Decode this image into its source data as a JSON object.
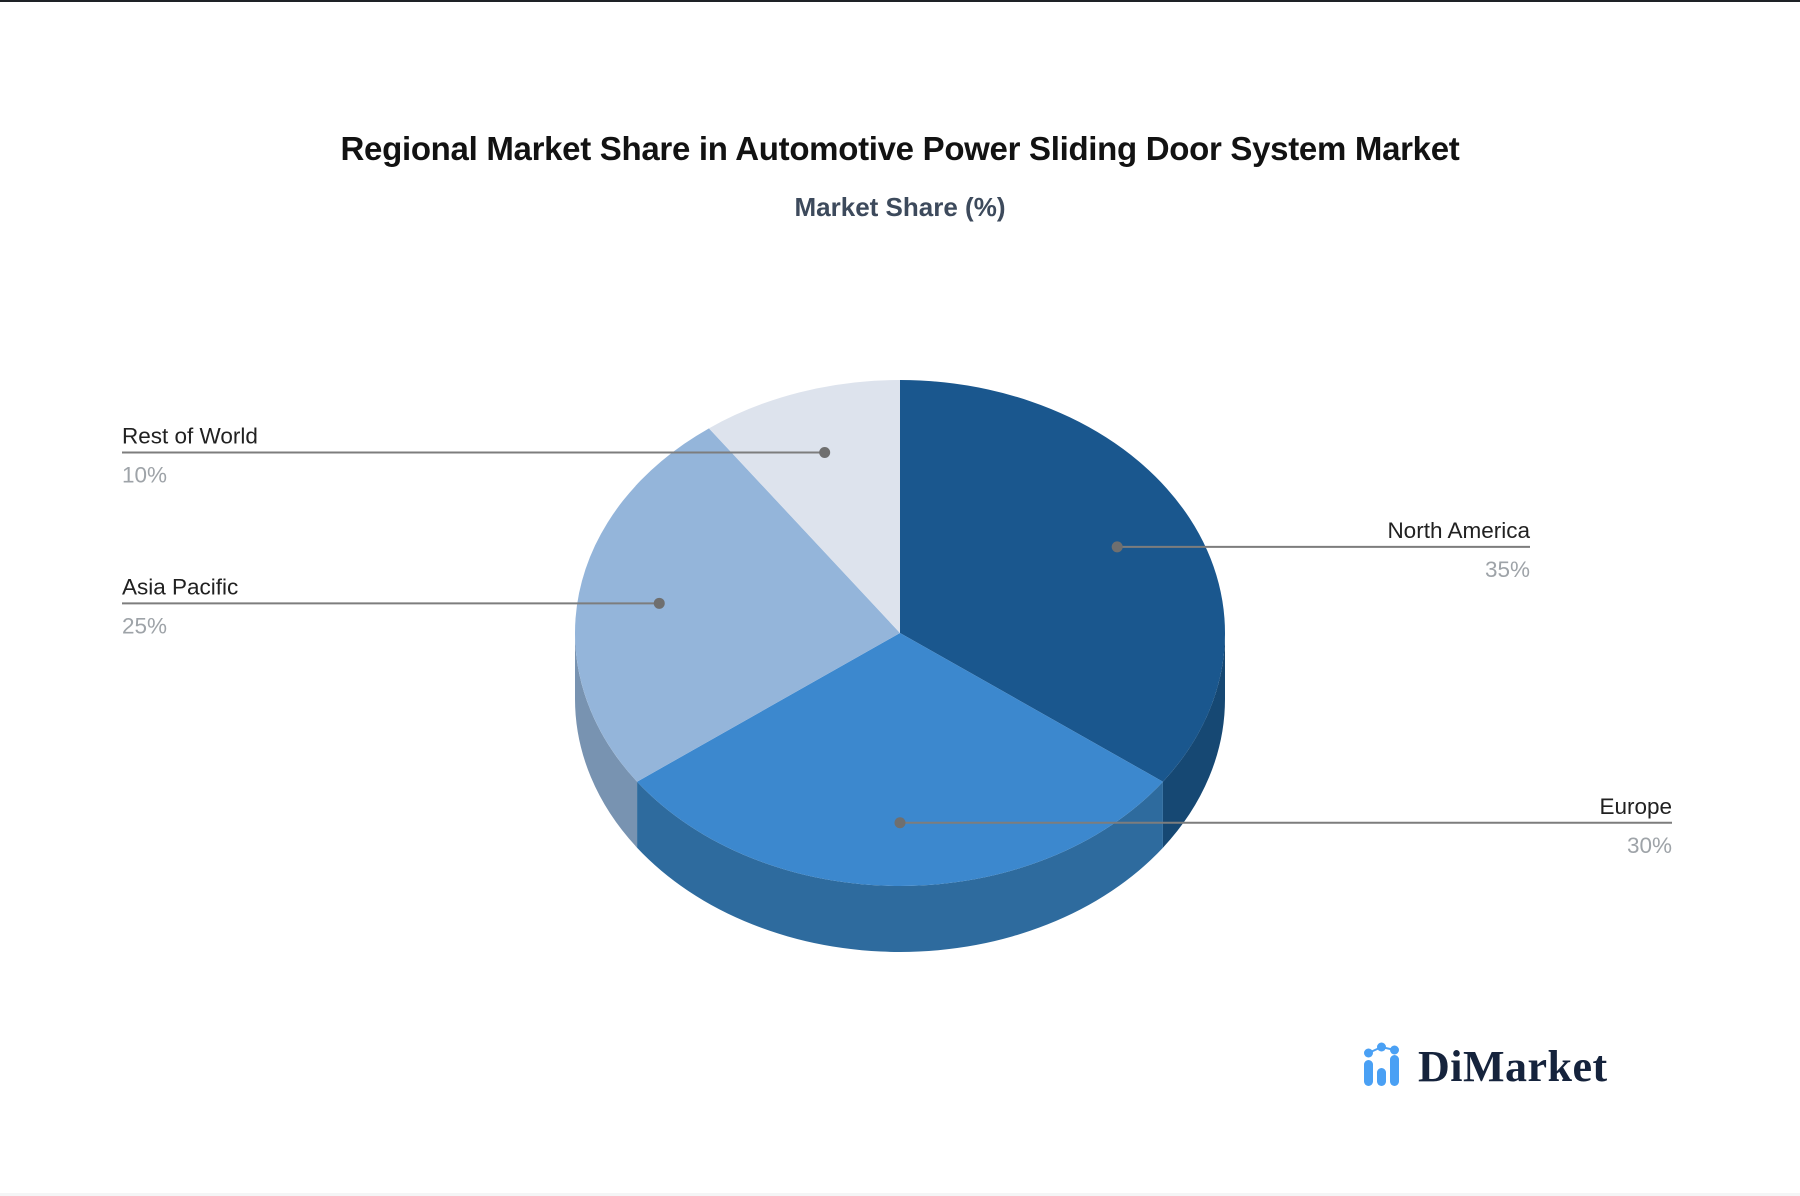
{
  "header": {
    "title": "Regional Market Share in Automotive Power Sliding Door System Market",
    "subtitle": "Market Share (%)"
  },
  "chart_data": {
    "type": "pie",
    "title": "Regional Market Share in Automotive Power Sliding Door System Market",
    "subtitle": "Market Share (%)",
    "unit": "%",
    "effect": "3d",
    "start_angle_deg": 0,
    "direction": "clockwise",
    "labels_layout": "callout-leader-lines",
    "legend_position": "none",
    "categories": [
      "North America",
      "Europe",
      "Asia Pacific",
      "Rest of World"
    ],
    "values": [
      35,
      30,
      25,
      10
    ],
    "slices": [
      {
        "label": "North America",
        "value": 35,
        "display": "35%",
        "color": "#1A578E",
        "side_color": "#164873"
      },
      {
        "label": "Europe",
        "value": 30,
        "display": "30%",
        "color": "#3C88CE",
        "side_color": "#2E6B9E"
      },
      {
        "label": "Asia Pacific",
        "value": 25,
        "display": "25%",
        "color": "#94B5DA",
        "side_color": "#7893B1"
      },
      {
        "label": "Rest of World",
        "value": 10,
        "display": "10%",
        "color": "#DDE3ED",
        "side_color": "#C4CDDC"
      }
    ],
    "label_color": "#212121",
    "value_color": "#9EA3A8",
    "leader_line_color": "#7d7d7d",
    "leader_dot_color": "#6f6f6f"
  },
  "branding": {
    "logo_text": "DiMarket",
    "logo_color": "#15233c",
    "icon": "bar-chart-icon",
    "icon_color": "#4AA0F4"
  }
}
